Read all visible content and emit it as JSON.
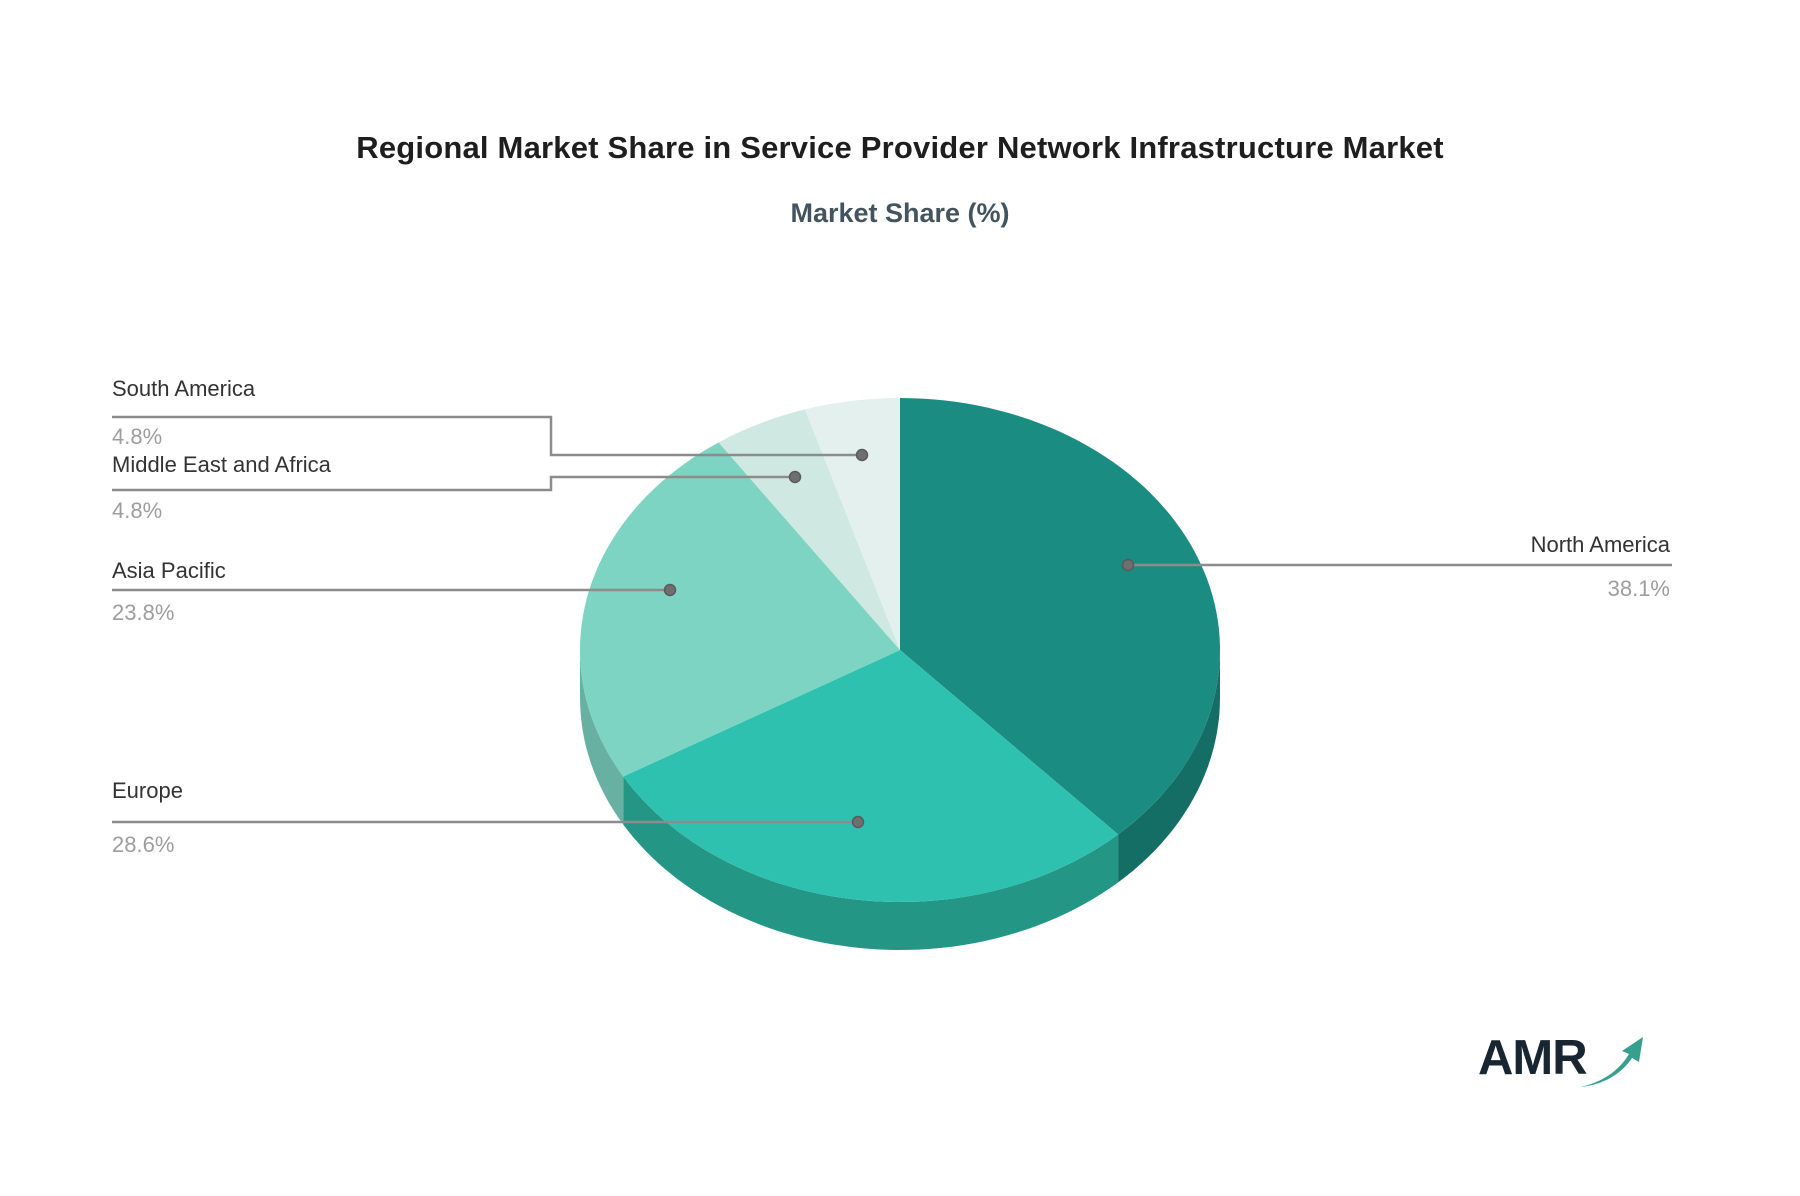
{
  "title": "Regional Market Share in Service Provider Network Infrastructure Market",
  "subtitle": "Market Share (%)",
  "chart_data": {
    "type": "pie",
    "title": "Regional Market Share in Service Provider Network Infrastructure Market",
    "subtitle": "Market Share (%)",
    "unit": "%",
    "style": "3d-pie",
    "direction": "clockwise",
    "start_angle": "12-oclock",
    "legend_position": "callout-labels",
    "slices": [
      {
        "label": "North America",
        "value": 38.1,
        "percent_label": "38.1%",
        "color": "#1b8c81",
        "side_color": "#156e65"
      },
      {
        "label": "Europe",
        "value": 28.6,
        "percent_label": "28.6%",
        "color": "#2fc1af",
        "side_color": "#249686"
      },
      {
        "label": "Asia Pacific",
        "value": 23.8,
        "percent_label": "23.8%",
        "color": "#7ed4c3",
        "side_color": "#68b0a1"
      },
      {
        "label": "Middle East and Africa",
        "value": 4.8,
        "percent_label": "4.8%",
        "color": "#cfe9e2",
        "side_color": "#b5d6cd"
      },
      {
        "label": "South America",
        "value": 4.8,
        "percent_label": "4.8%",
        "color": "#e4f0ed",
        "side_color": "#cbdfd9"
      }
    ]
  },
  "colors": {
    "background": "#ffffff",
    "title_text": "#1e1e1e",
    "subtitle_text": "#43545f",
    "label_text": "#333333",
    "value_text": "#9d9d9d",
    "leader_line": "#8c8c8c",
    "dot": "#6f6f6f"
  },
  "logo": {
    "text": "AMR",
    "text_color": "#182631",
    "arrow_color": "#379f8d"
  }
}
